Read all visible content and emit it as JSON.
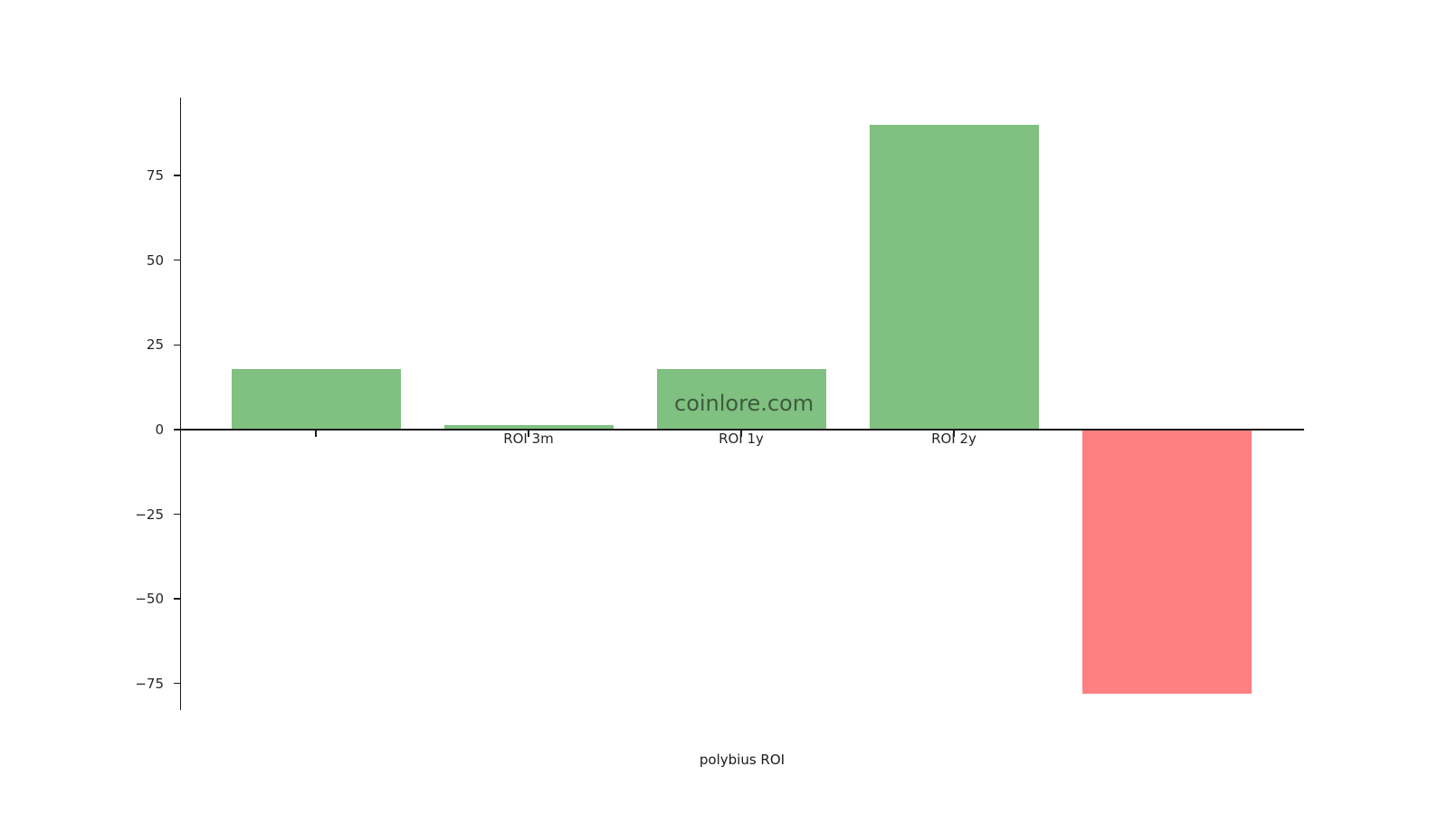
{
  "page": {
    "background": "#ffffff"
  },
  "watermark": {
    "text": "coinlore.com",
    "color": "#3e5a40"
  },
  "axis": {
    "line_color": "#1a1a1a",
    "tick_label_color": "#262626"
  },
  "chart_data": {
    "type": "bar",
    "title": "",
    "xlabel": "polybius ROI",
    "ylabel": "",
    "categories": [
      "",
      "ROI 3m",
      "ROI 1y",
      "ROI 2y",
      ""
    ],
    "values": [
      18,
      1.3,
      18,
      90,
      -78
    ],
    "bar_colors": [
      "#80c080",
      "#80c080",
      "#80c080",
      "#80c080",
      "#ff8080"
    ],
    "positive_color": "#80c080",
    "negative_color": "#ff8080",
    "yticks": [
      75,
      50,
      25,
      0,
      -25,
      -50,
      -75
    ],
    "ytick_labels": [
      "75",
      "50",
      "25",
      "0",
      "−25",
      "−50",
      "−75"
    ],
    "xticks_shown": [
      true,
      true,
      true,
      true,
      false
    ],
    "ylim": [
      -82.8,
      98.0
    ],
    "grid": false,
    "legend": null
  }
}
